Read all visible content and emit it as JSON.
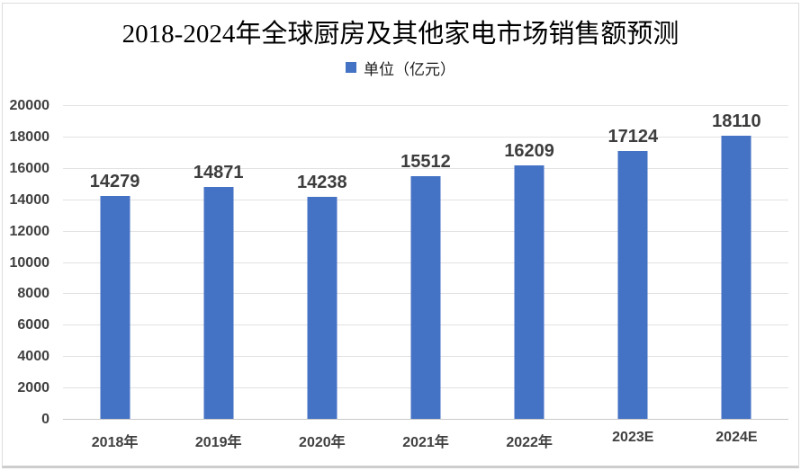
{
  "title": "2018-2024年全球厨房及其他家电市场销售额预测",
  "legend": {
    "label": "单位（亿元）",
    "swatch_color": "#4472C4"
  },
  "colors": {
    "bar": "#4472C4",
    "gridline": "#e2e2e2",
    "axis_line": "#c9c9c9",
    "axis_text": "#404040",
    "value_text": "#3d3d3d",
    "title_text": "#000000",
    "frame_border": "#dcdcdc",
    "frame_bottom": "#cdcdcd"
  },
  "chart_data": {
    "type": "bar",
    "title": "2018-2024年全球厨房及其他家电市场销售额预测",
    "legend_label": "单位（亿元）",
    "legend_position": "top",
    "categories": [
      "2018年",
      "2019年",
      "2020年",
      "2021年",
      "2022年",
      "2023E",
      "2024E"
    ],
    "values": [
      14279,
      14871,
      14238,
      15512,
      16209,
      17124,
      18110
    ],
    "ylim": [
      0,
      20000
    ],
    "ytick_step": 2000,
    "yticks": [
      0,
      2000,
      4000,
      6000,
      8000,
      10000,
      12000,
      14000,
      16000,
      18000,
      20000
    ],
    "grid": true,
    "xlabel": "",
    "ylabel": ""
  }
}
